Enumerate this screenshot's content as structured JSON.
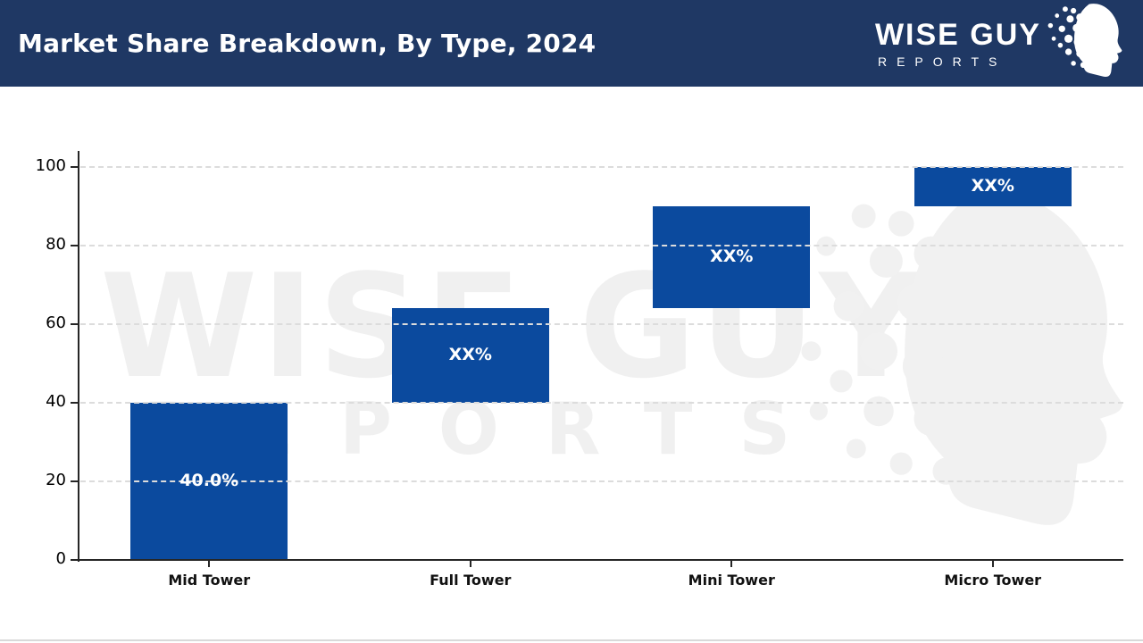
{
  "header": {
    "title": "Market Share Breakdown, By Type, 2024",
    "bg_color": "#1f3864",
    "logo": {
      "line1": "WISE GUY",
      "line2": "REPORTS"
    }
  },
  "chart_data": {
    "type": "bar",
    "subtype": "waterfall",
    "title": "Market Share Breakdown, By Type, 2024",
    "categories": [
      "Mid Tower",
      "Full Tower",
      "Mini Tower",
      "Micro Tower"
    ],
    "segments": [
      {
        "category": "Mid Tower",
        "start": 0,
        "end": 40,
        "label": "40.0%"
      },
      {
        "category": "Full Tower",
        "start": 40,
        "end": 64,
        "label": "XX%"
      },
      {
        "category": "Mini Tower",
        "start": 64,
        "end": 90,
        "label": "XX%"
      },
      {
        "category": "Micro Tower",
        "start": 90,
        "end": 100,
        "label": "XX%"
      }
    ],
    "xlabel": "",
    "ylabel": "",
    "y_ticks": [
      0,
      20,
      40,
      60,
      80,
      100
    ],
    "ylim": [
      0,
      104
    ],
    "grid": "horizontal-dashed",
    "legend": "none",
    "bar_color": "#0b4a9e",
    "bar_label_color": "#ffffff",
    "gridline_color": "#dcdcdc",
    "axis_color": "#262626",
    "watermark": {
      "line1": "WISE GUY",
      "line2": "REPORTS"
    }
  }
}
